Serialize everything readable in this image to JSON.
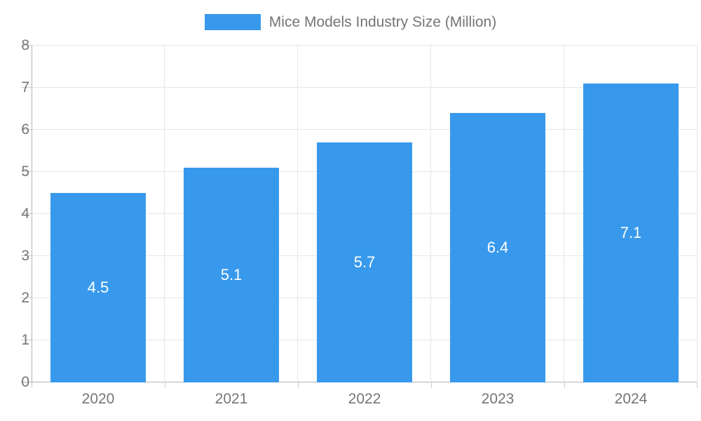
{
  "legend": {
    "series_label": "Mice Models Industry Size (Million)"
  },
  "chart_data": {
    "type": "bar",
    "title": "Mice Models Industry Size (Million)",
    "categories": [
      "2020",
      "2021",
      "2022",
      "2023",
      "2024"
    ],
    "values": [
      4.5,
      5.1,
      5.7,
      6.4,
      7.1
    ],
    "value_labels": [
      "4.5",
      "5.1",
      "5.7",
      "6.4",
      "7.1"
    ],
    "xlabel": "",
    "ylabel": "",
    "ylim": [
      0,
      8
    ],
    "yticks": [
      0,
      1,
      2,
      3,
      4,
      5,
      6,
      7,
      8
    ],
    "grid": true,
    "legend_position": "top",
    "colors": {
      "bar": "#3899EC",
      "bar_label": "#FFFFFF",
      "gridline": "#E6E6E6",
      "axis_line": "#B4B4B4",
      "tick_mark": "#CCCCCC",
      "axis_label": "#757575",
      "legend_text": "#757575",
      "background": "#FFFFFF"
    }
  }
}
